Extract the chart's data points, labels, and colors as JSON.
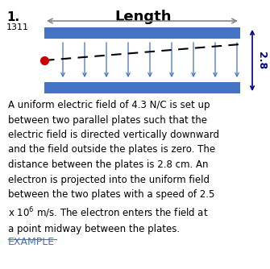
{
  "title": "Length",
  "number_label": "1.",
  "problem_number": "1311",
  "plate_color": "#4472C4",
  "arrow_color": "#4472C4",
  "dashed_line_color": "black",
  "dot_color": "#CC0000",
  "label_28": "2.8",
  "label_28_color": "#00008B",
  "example_text": "EXAMPLE",
  "example_color": "#4472C4",
  "bg_color": "#FFFFFF"
}
